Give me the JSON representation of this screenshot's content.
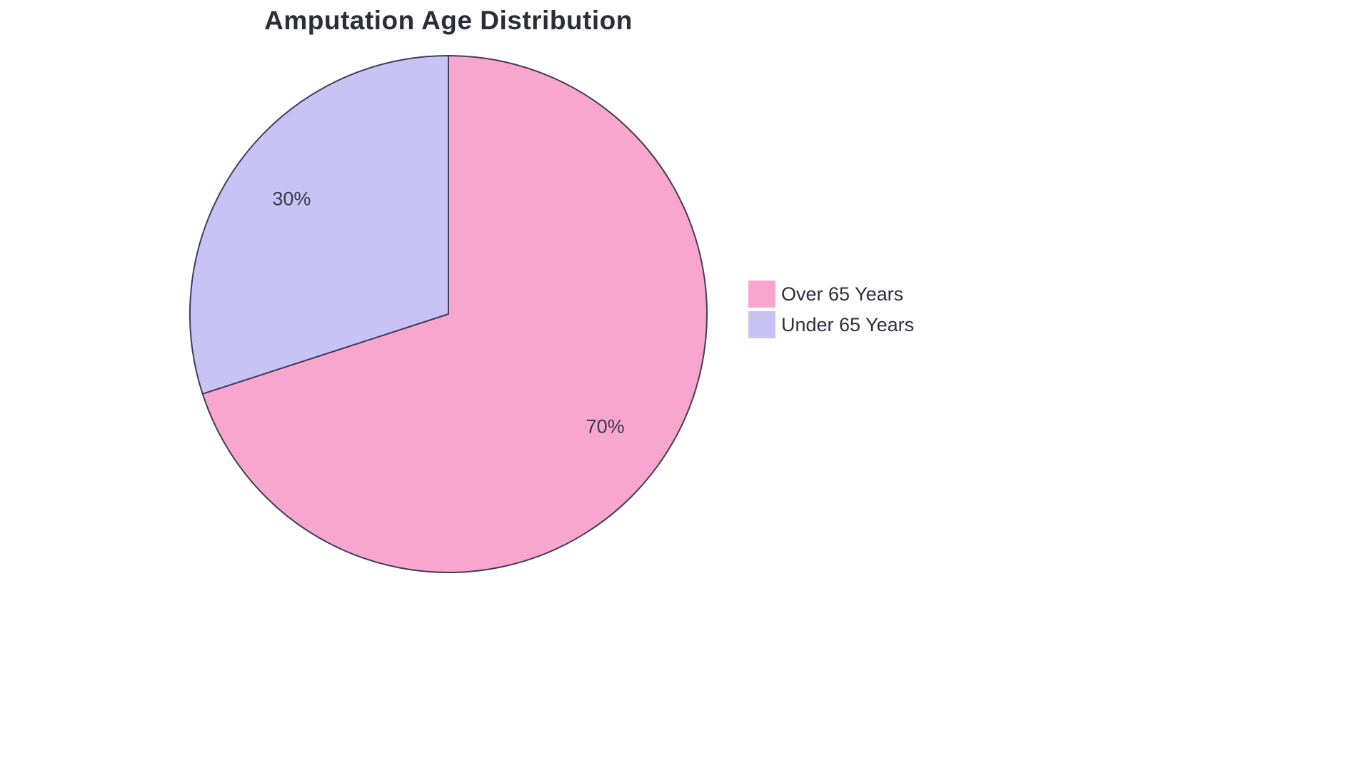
{
  "chart_data": {
    "type": "pie",
    "title": "Amputation Age Distribution",
    "slices": [
      {
        "label": "Over 65 Years",
        "value": 70,
        "display": "70%",
        "color": "#F9A6CF"
      },
      {
        "label": "Under 65 Years",
        "value": 30,
        "display": "30%",
        "color": "#C9C3F5"
      }
    ],
    "start_angle_deg": -90,
    "direction": "clockwise",
    "legend_position": "right",
    "stroke_color": "#3d3d5c",
    "label_color": "#3a3a4a",
    "background": "#ffffff"
  }
}
